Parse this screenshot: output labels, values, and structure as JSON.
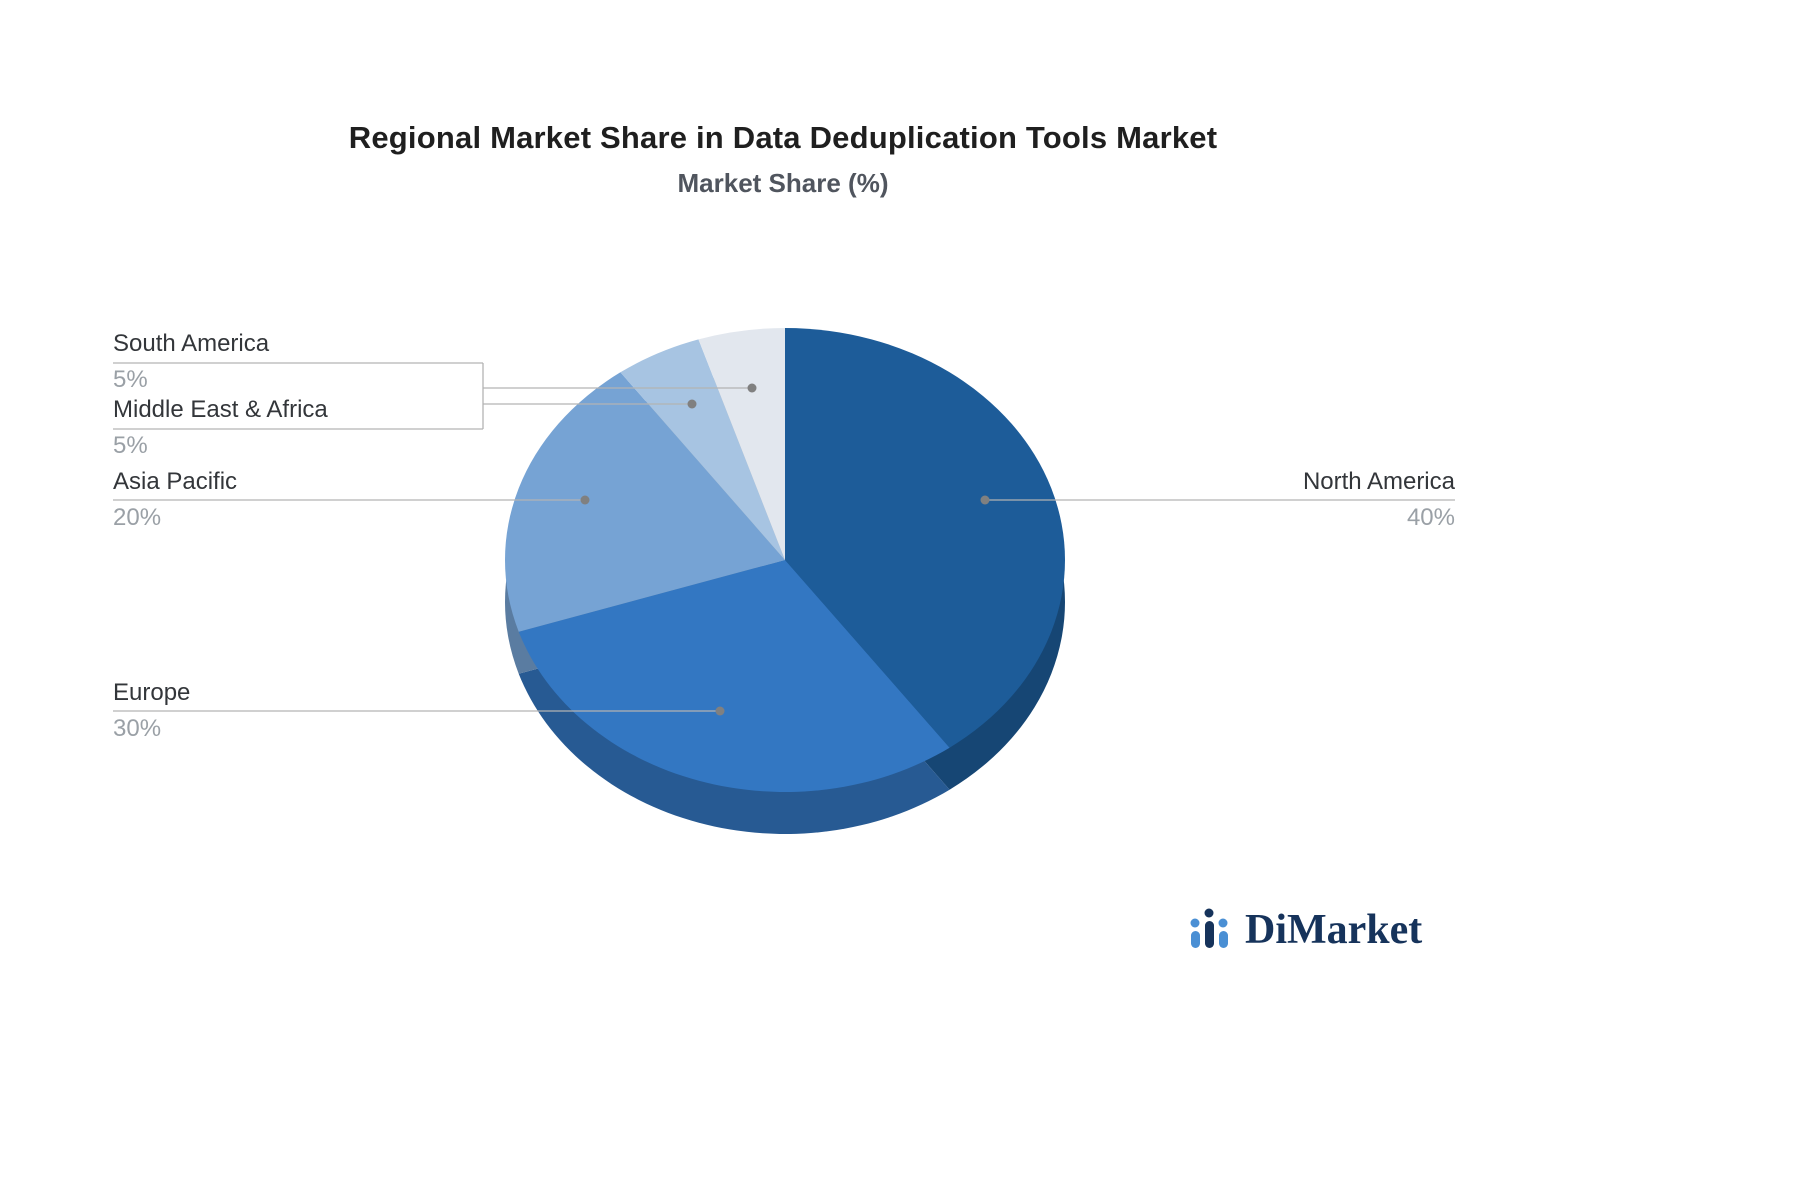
{
  "title": "Regional Market Share in Data Deduplication Tools Market",
  "subtitle": "Market Share (%)",
  "brand": {
    "name": "DiMarket"
  },
  "colors": {
    "leader_line": "#b3b3b3",
    "callout_dot": "#808080",
    "title_text": "#1f1f1f",
    "subtitle_text": "#50555e",
    "brand_navy": "#16335b",
    "brand_blue": "#4a8fd4"
  },
  "chart_data": {
    "type": "pie",
    "title": "Regional Market Share in Data Deduplication Tools Market",
    "subtitle": "Market Share (%)",
    "unit": "%",
    "start_angle_deg": -90,
    "direction": "clockwise",
    "style": "3d-depth",
    "legend": "none",
    "slices": [
      {
        "label": "North America",
        "value": 40,
        "value_label": "40%",
        "color": "#1d5c99"
      },
      {
        "label": "Europe",
        "value": 30,
        "value_label": "30%",
        "color": "#3377c2"
      },
      {
        "label": "Asia Pacific",
        "value": 20,
        "value_label": "20%",
        "color": "#76a3d4"
      },
      {
        "label": "Middle East & Africa",
        "value": 5,
        "value_label": "5%",
        "color": "#a7c4e2"
      },
      {
        "label": "South America",
        "value": 5,
        "value_label": "5%",
        "color": "#e2e7ee"
      }
    ]
  }
}
